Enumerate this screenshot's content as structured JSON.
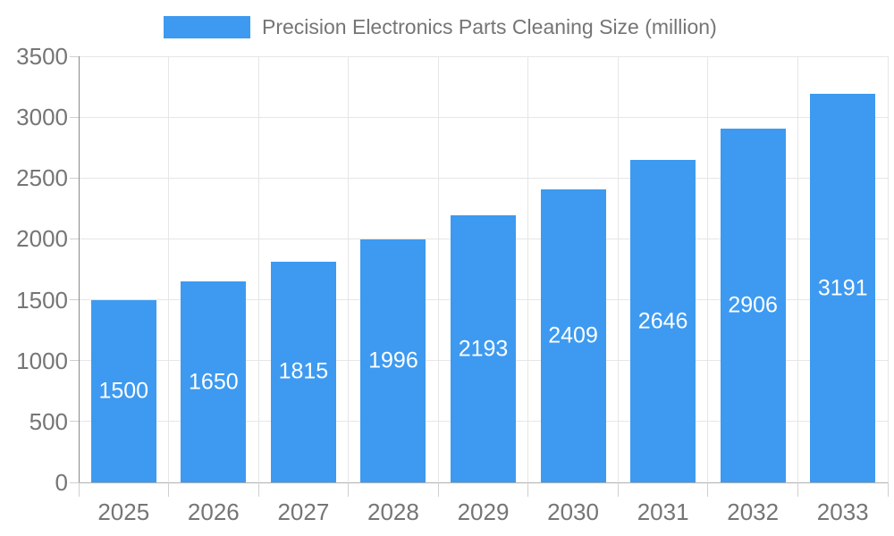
{
  "chart_data": {
    "type": "bar",
    "title": "Precision Electronics Parts Cleaning Size (million)",
    "categories": [
      "2025",
      "2026",
      "2027",
      "2028",
      "2029",
      "2030",
      "2031",
      "2032",
      "2033"
    ],
    "values": [
      1500,
      1650,
      1815,
      1996,
      2193,
      2409,
      2646,
      2906,
      3191
    ],
    "xlabel": "",
    "ylabel": "",
    "ylim": [
      0,
      3500
    ],
    "yticks": [
      0,
      500,
      1000,
      1500,
      2000,
      2500,
      3000,
      3500
    ],
    "grid": true,
    "legend_position": "top",
    "colors": {
      "bar": "#3D9AF0",
      "bar_label": "#ffffff",
      "gridline": "#E6E6E6",
      "baseline": "#B0B0B0",
      "axis_line": "#8A8A8A",
      "tick": "#CFCFCF",
      "axis_text": "#757575",
      "background": "#ffffff"
    }
  }
}
